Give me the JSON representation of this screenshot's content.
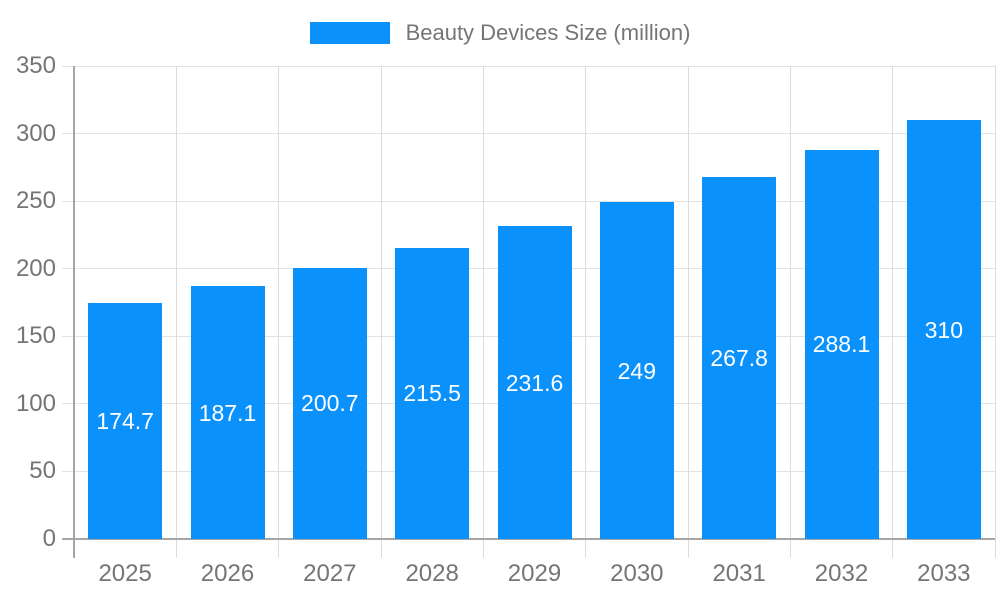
{
  "legend": {
    "label": "Beauty Devices Size (million)"
  },
  "colors": {
    "bar": "#0A91FB",
    "grid": "#E2E2E2",
    "axis": "#A6A6A6",
    "tick_text": "#757575",
    "value_label_text": "#FFFFFF"
  },
  "chart_data": {
    "type": "bar",
    "title": "Beauty Devices Size (million)",
    "categories": [
      "2025",
      "2026",
      "2027",
      "2028",
      "2029",
      "2030",
      "2031",
      "2032",
      "2033"
    ],
    "series": [
      {
        "name": "Beauty Devices Size (million)",
        "values": [
          174.7,
          187.1,
          200.7,
          215.5,
          231.6,
          249,
          267.8,
          288.1,
          310
        ]
      }
    ],
    "data_labels": [
      "174.7",
      "187.1",
      "200.7",
      "215.5",
      "231.6",
      "249",
      "267.8",
      "288.1",
      "310"
    ],
    "xlabel": "",
    "ylabel": "",
    "ylim": [
      0,
      350
    ],
    "ytick_step": 50,
    "grid": true,
    "legend_position": "top-center",
    "bar_color": "#0A91FB",
    "value_label_position": "inside-center"
  }
}
